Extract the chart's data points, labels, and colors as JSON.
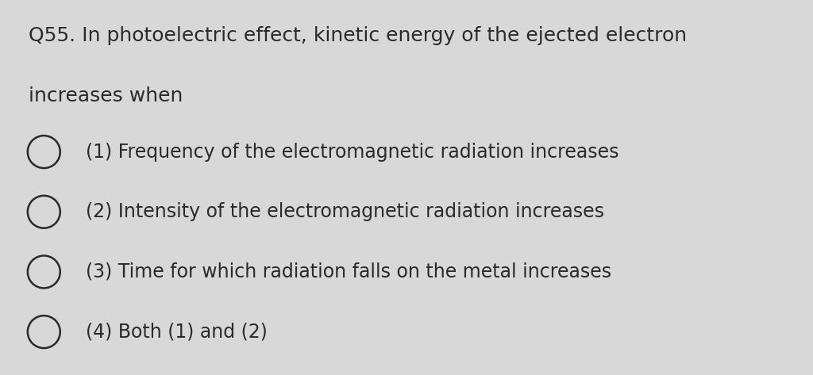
{
  "background_color": "#d8d8d8",
  "question_line1": "Q55. In photoelectric effect, kinetic energy of the ejected electron",
  "question_line2": "increases when",
  "options": [
    "(1) Frequency of the electromagnetic radiation increases",
    "(2) Intensity of the electromagnetic radiation increases",
    "(3) Time for which radiation falls on the metal increases",
    "(4) Both (1) and (2)"
  ],
  "text_color": "#2a2a2a",
  "circle_edge_color": "#2a2a2a",
  "question_fontsize": 18,
  "option_fontsize": 17,
  "fig_width": 10.24,
  "fig_height": 4.73,
  "dpi": 100
}
